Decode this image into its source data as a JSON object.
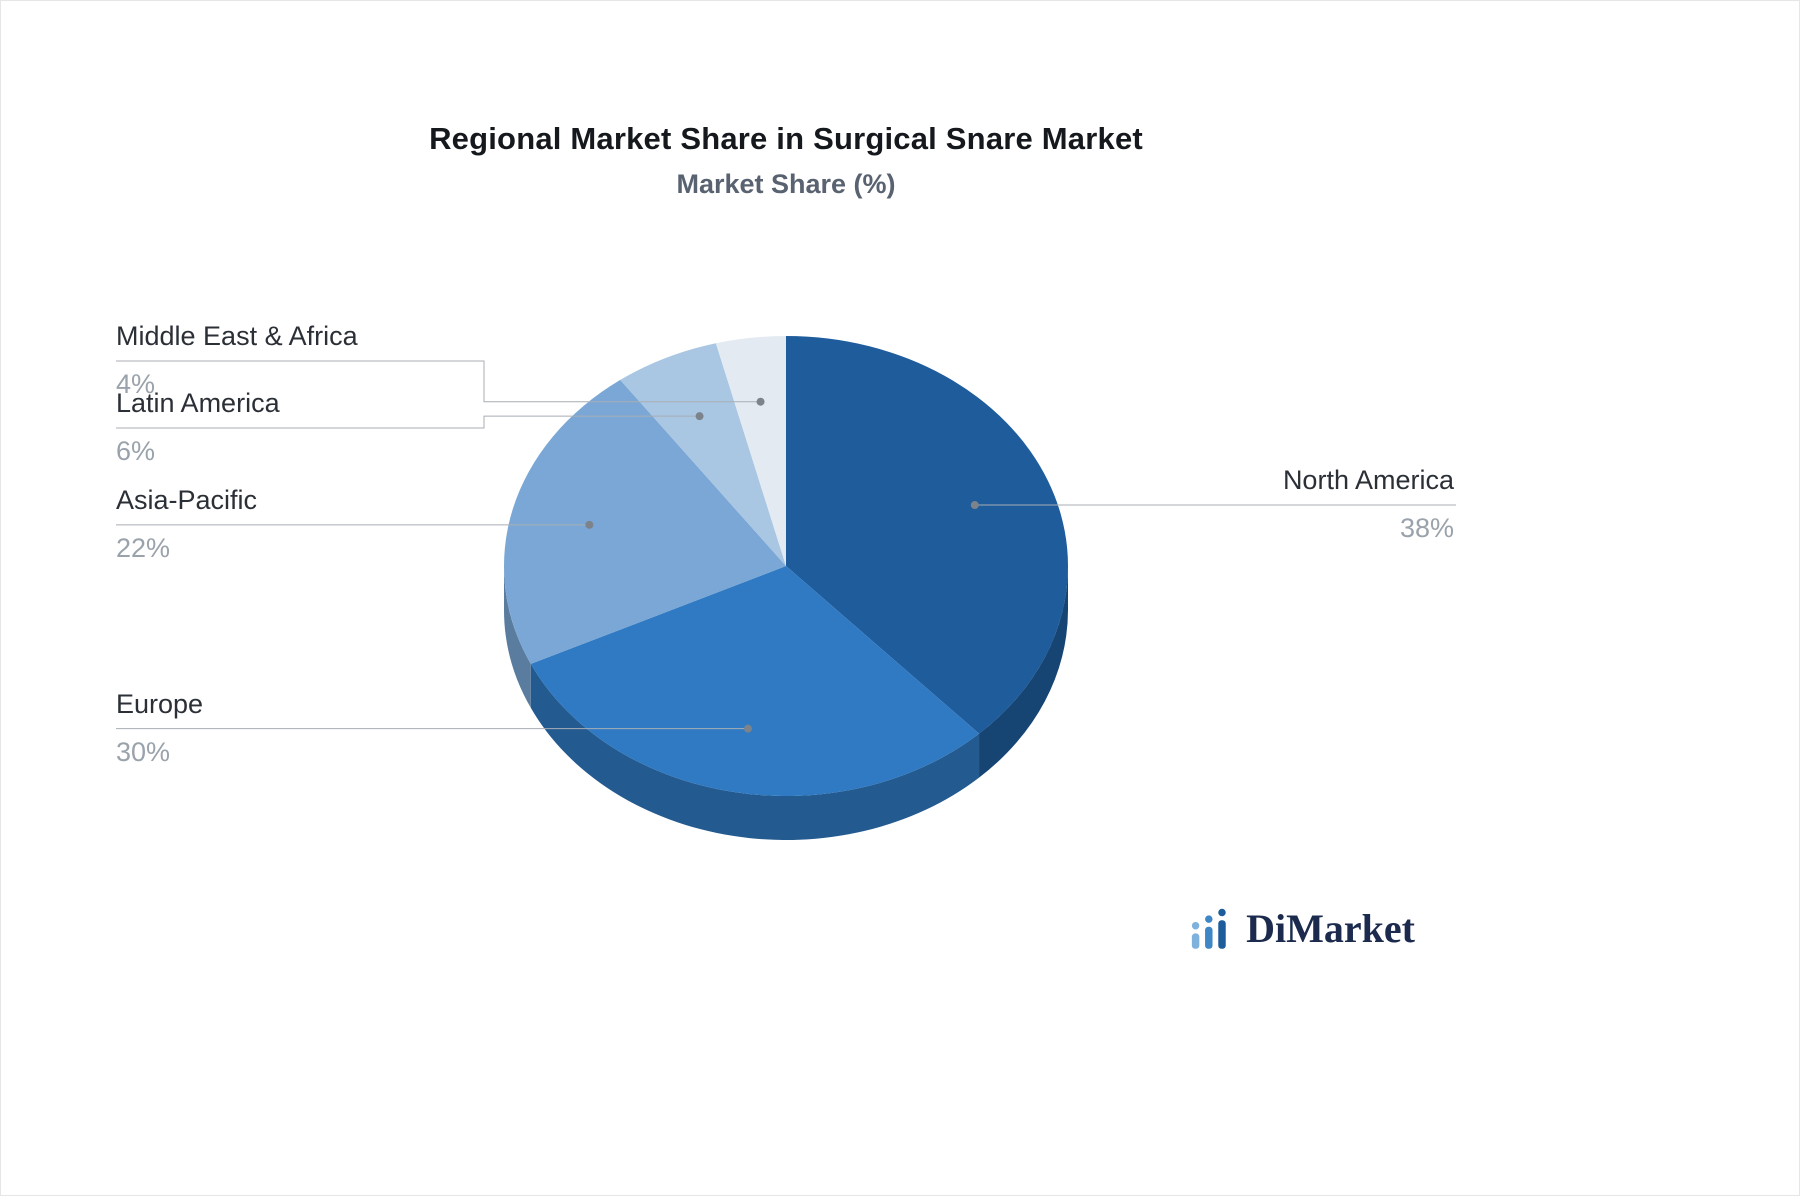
{
  "chart_data": {
    "type": "pie",
    "style": "3d",
    "title": "Regional Market Share in Surgical Snare Market",
    "subtitle": "Market Share (%)",
    "value_suffix": "%",
    "legend_position": "callout-labels",
    "series": [
      {
        "label": "North America",
        "value": 38,
        "color": "#1e5c9c"
      },
      {
        "label": "Europe",
        "value": 30,
        "color": "#2f7ac3"
      },
      {
        "label": "Asia-Pacific",
        "value": 22,
        "color": "#7aa7d5"
      },
      {
        "label": "Latin America",
        "value": 6,
        "color": "#a9c6e3"
      },
      {
        "label": "Middle East & Africa",
        "value": 4,
        "color": "#e4eaf1"
      }
    ]
  },
  "branding": {
    "name": "DiMarket"
  }
}
